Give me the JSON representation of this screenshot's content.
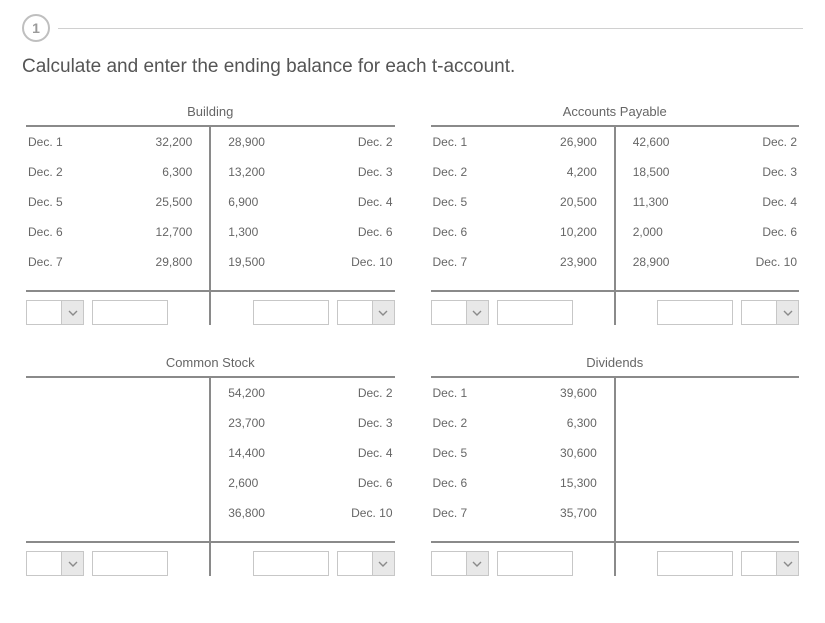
{
  "step_number": "1",
  "instruction": "Calculate and enter the ending balance for each t-account.",
  "colors": {
    "rule": "#8a8a8a",
    "text": "#555555",
    "muted": "#9a9a9a",
    "input_border": "#c7c7c7",
    "dd_button_bg": "#e8e8e8",
    "background": "#ffffff"
  },
  "typography": {
    "instruction_fontsize_pt": 14,
    "title_fontsize_pt": 10,
    "cell_fontsize_pt": 9,
    "font_family": "Segoe UI"
  },
  "accounts": [
    {
      "title": "Building",
      "left": [
        {
          "date": "Dec. 1",
          "amount": "32,200"
        },
        {
          "date": "Dec. 2",
          "amount": "6,300"
        },
        {
          "date": "Dec. 5",
          "amount": "25,500"
        },
        {
          "date": "Dec. 6",
          "amount": "12,700"
        },
        {
          "date": "Dec. 7",
          "amount": "29,800"
        }
      ],
      "right": [
        {
          "date": "Dec. 2",
          "amount": "28,900"
        },
        {
          "date": "Dec. 3",
          "amount": "13,200"
        },
        {
          "date": "Dec. 4",
          "amount": "6,900"
        },
        {
          "date": "Dec. 6",
          "amount": "1,300"
        },
        {
          "date": "Dec. 10",
          "amount": "19,500"
        }
      ]
    },
    {
      "title": "Accounts Payable",
      "left": [
        {
          "date": "Dec. 1",
          "amount": "26,900"
        },
        {
          "date": "Dec. 2",
          "amount": "4,200"
        },
        {
          "date": "Dec. 5",
          "amount": "20,500"
        },
        {
          "date": "Dec. 6",
          "amount": "10,200"
        },
        {
          "date": "Dec. 7",
          "amount": "23,900"
        }
      ],
      "right": [
        {
          "date": "Dec. 2",
          "amount": "42,600"
        },
        {
          "date": "Dec. 3",
          "amount": "18,500"
        },
        {
          "date": "Dec. 4",
          "amount": "11,300"
        },
        {
          "date": "Dec. 6",
          "amount": "2,000"
        },
        {
          "date": "Dec. 10",
          "amount": "28,900"
        }
      ]
    },
    {
      "title": "Common Stock",
      "left": [],
      "right": [
        {
          "date": "Dec. 2",
          "amount": "54,200"
        },
        {
          "date": "Dec. 3",
          "amount": "23,700"
        },
        {
          "date": "Dec. 4",
          "amount": "14,400"
        },
        {
          "date": "Dec. 6",
          "amount": "2,600"
        },
        {
          "date": "Dec. 10",
          "amount": "36,800"
        }
      ]
    },
    {
      "title": "Dividends",
      "left": [
        {
          "date": "Dec. 1",
          "amount": "39,600"
        },
        {
          "date": "Dec. 2",
          "amount": "6,300"
        },
        {
          "date": "Dec. 5",
          "amount": "30,600"
        },
        {
          "date": "Dec. 6",
          "amount": "15,300"
        },
        {
          "date": "Dec. 7",
          "amount": "35,700"
        }
      ],
      "right": []
    }
  ]
}
